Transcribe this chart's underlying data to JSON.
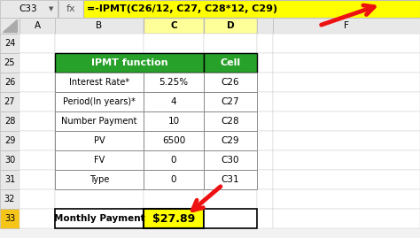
{
  "formula_bar_text": "=-IPMT(C26/12, C27, C28*12, C29)",
  "cell_ref": "C33",
  "table_rows": [
    [
      "Interest Rate*",
      "5.25%",
      "C26"
    ],
    [
      "Period(In years)*",
      "4",
      "C27"
    ],
    [
      "Number Payment",
      "10",
      "C28"
    ],
    [
      "PV",
      "6500",
      "C29"
    ],
    [
      "FV",
      "0",
      "C30"
    ],
    [
      "Type",
      "0",
      "C31"
    ]
  ],
  "result_label": "Monthly Payment",
  "result_value": "$27.89",
  "green_color": "#27A12A",
  "white": "#FFFFFF",
  "yellow": "#FFFF00",
  "light_gray": "#E8E8E8",
  "med_gray": "#D0D0D0",
  "dark_gray": "#888888",
  "black": "#000000",
  "red": "#EE1111",
  "bg": "#F2F2F2",
  "formula_bg": "#FFFF00",
  "active_row_yellow": "#F5C518",
  "col_header_yellow": "#FFFF99"
}
